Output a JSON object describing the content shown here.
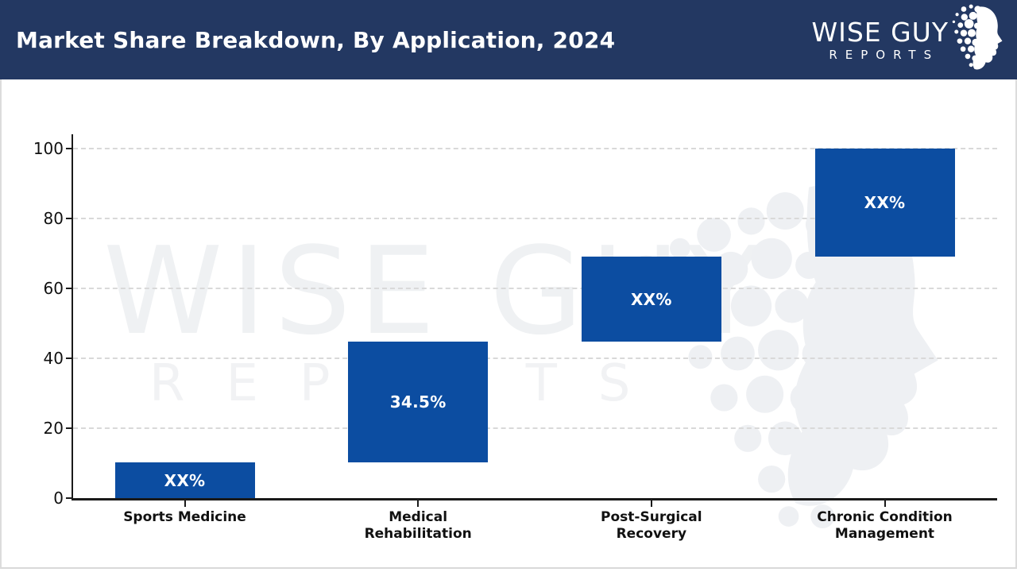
{
  "header": {
    "title": "Market Share Breakdown, By Application, 2024",
    "logo": {
      "line1": "WISE GUY",
      "line2": "REPORTS"
    }
  },
  "watermark": {
    "line1": "WISE GUY",
    "line2": "REPORTS"
  },
  "colors": {
    "header_bg": "#233862",
    "bar": "#0c4da1",
    "grid": "#d9d9d9",
    "axis": "#1a1a1a",
    "bar_label": "#ffffff"
  },
  "chart_data": {
    "type": "bar",
    "subtype": "waterfall-breakdown",
    "title": "Market Share Breakdown, By Application, 2024",
    "categories": [
      "Sports Medicine",
      "Medical Rehabilitation",
      "Post-Surgical Recovery",
      "Chronic Condition Management"
    ],
    "category_lines": [
      [
        "Sports Medicine"
      ],
      [
        "Medical",
        "Rehabilitation"
      ],
      [
        "Post-Surgical",
        "Recovery"
      ],
      [
        "Chronic Condition",
        "Management"
      ]
    ],
    "segments": [
      {
        "category": "Sports Medicine",
        "start": 0,
        "end": 10.2,
        "label": "XX%"
      },
      {
        "category": "Medical Rehabilitation",
        "start": 10.2,
        "end": 44.7,
        "label": "34.5%",
        "value": 34.5
      },
      {
        "category": "Post-Surgical Recovery",
        "start": 44.7,
        "end": 69.1,
        "label": "XX%"
      },
      {
        "category": "Chronic Condition Management",
        "start": 69.1,
        "end": 100,
        "label": "XX%"
      }
    ],
    "yticks": [
      0,
      20,
      40,
      60,
      80,
      100
    ],
    "ylim": [
      0,
      104
    ],
    "xlabel": "",
    "ylabel": "",
    "grid": "horizontal-dashed",
    "legend": "none"
  }
}
